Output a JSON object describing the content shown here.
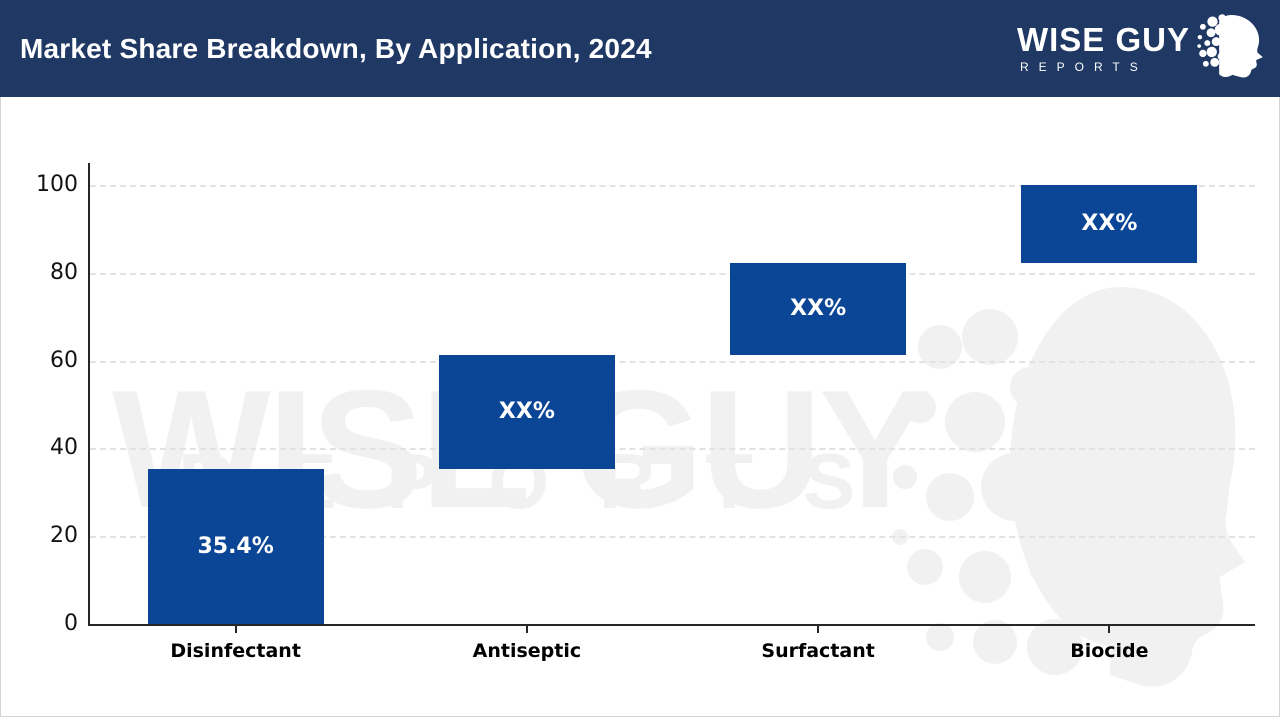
{
  "header": {
    "title": "Market Share Breakdown, By Application, 2024",
    "background_color": "#1f3864",
    "text_color": "#ffffff"
  },
  "logo": {
    "line1": "WISE GUY",
    "line2": "REPORTS",
    "head_icon": "dotted-head-profile"
  },
  "watermark": {
    "line1": "WISE GUY",
    "line2": "REPORTS",
    "color": "#f1f1f2"
  },
  "chart_data": {
    "type": "bar",
    "variant": "waterfall-stacked-percentage",
    "title": "Market Share Breakdown, By Application, 2024",
    "categories": [
      "Disinfectant",
      "Antiseptic",
      "Surfactant",
      "Biocide"
    ],
    "series": [
      {
        "name": "Market Share (%)",
        "segments": [
          {
            "category": "Disinfectant",
            "start": 0,
            "end": 35.4,
            "label": "35.4%"
          },
          {
            "category": "Antiseptic",
            "start": 35.4,
            "end": 61.3,
            "label": "XX%"
          },
          {
            "category": "Surfactant",
            "start": 61.3,
            "end": 82.3,
            "label": "XX%"
          },
          {
            "category": "Biocide",
            "start": 82.3,
            "end": 100,
            "label": "XX%"
          }
        ]
      }
    ],
    "xlabel": "",
    "ylabel": "",
    "yticks": [
      0,
      20,
      40,
      60,
      80,
      100
    ],
    "ylim": [
      0,
      105
    ],
    "grid": "horizontal-dashed",
    "legend": "none",
    "bar_color": "#0a4596",
    "bar_label_color": "#ffffff",
    "axis_color": "#262626",
    "gridline_color": "#e2e2e2"
  }
}
